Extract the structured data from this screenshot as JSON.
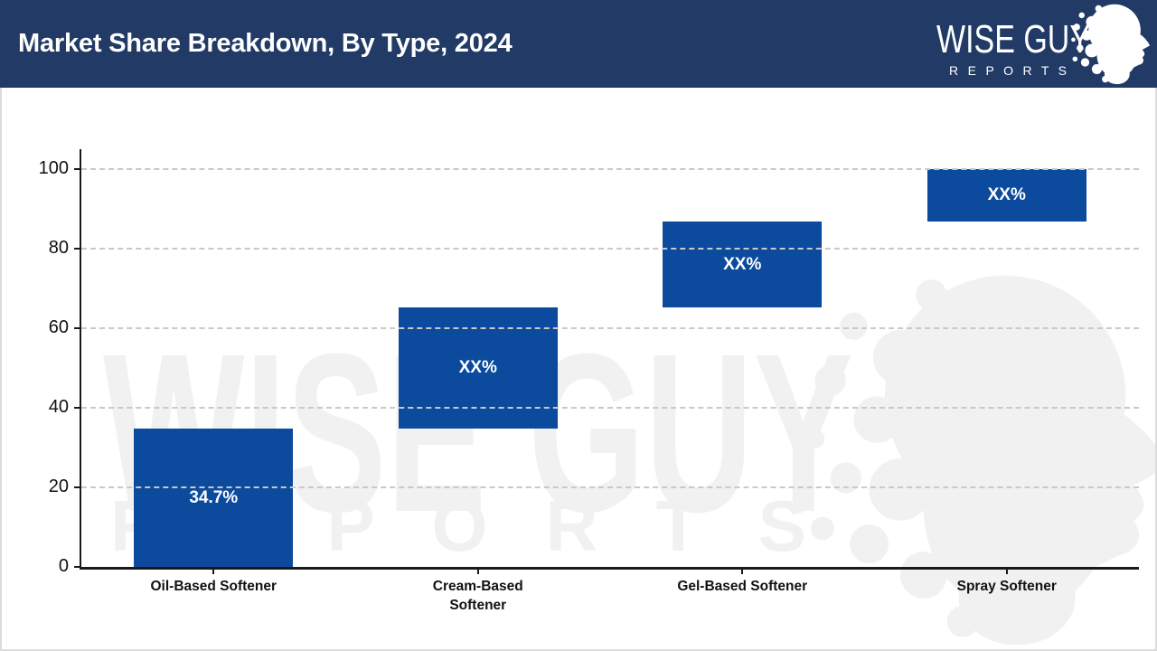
{
  "header": {
    "title": "Market Share Breakdown, By Type, 2024",
    "logo": {
      "line1": "WISE GUY",
      "line2": "R E P O R T S"
    }
  },
  "watermark": {
    "line1": "WISE GUY",
    "line2": "R E P O R T S"
  },
  "chart_data": {
    "type": "bar",
    "subtype": "floating-segment waterfall of market share",
    "title": "Market Share Breakdown, By Type, 2024",
    "categories": [
      "Oil-Based Softener",
      "Cream-Based\nSoftener",
      "Gel-Based Softener",
      "Spray Softener"
    ],
    "segments": [
      {
        "category": "Oil-Based Softener",
        "start": 0,
        "end": 34.7,
        "label": "34.7%"
      },
      {
        "category": "Cream-Based Softener",
        "start": 34.7,
        "end": 65.2,
        "label": "XX%"
      },
      {
        "category": "Gel-Based Softener",
        "start": 65.2,
        "end": 86.8,
        "label": "XX%"
      },
      {
        "category": "Spray Softener",
        "start": 86.8,
        "end": 100,
        "label": "XX%"
      }
    ],
    "xlabel": "",
    "ylabel": "",
    "ylim": [
      0,
      100
    ],
    "yticks": [
      0,
      20,
      40,
      60,
      80,
      100
    ],
    "grid": "horizontal dashed, drawn over bars",
    "legend": "none",
    "colors": {
      "bar": "#0b4a9c",
      "bar_label": "#ffffff",
      "grid": "#c9c9c9",
      "axis": "#1a1a1a",
      "header_bg": "#213a66",
      "watermark": "#f1f1f1"
    }
  }
}
